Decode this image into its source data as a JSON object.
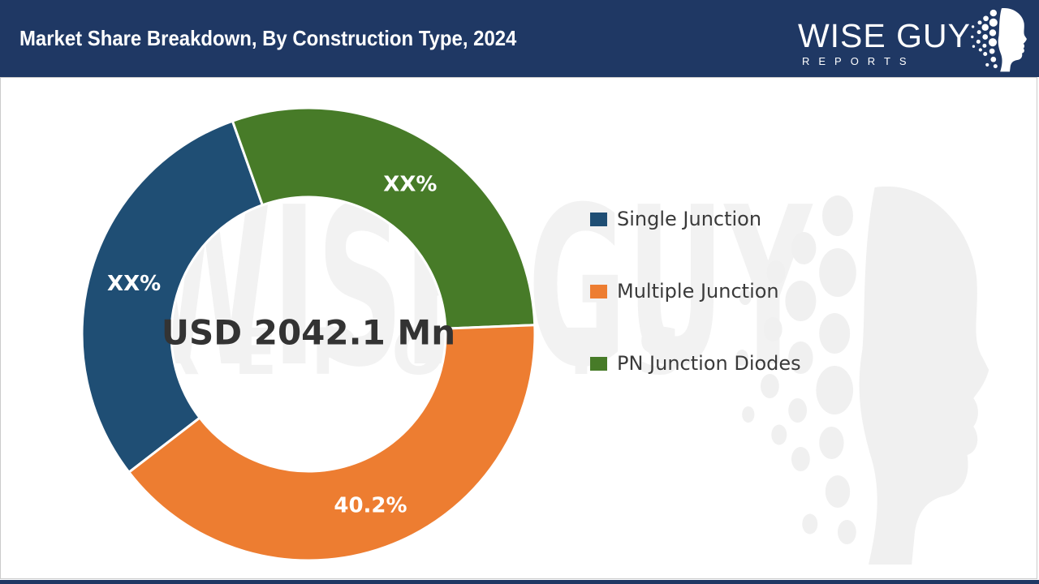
{
  "header": {
    "title": "Market Share Breakdown, By Construction Type, 2024",
    "background_color": "#1f3864",
    "logo": {
      "line1": "WISE GUY",
      "line2": "REPORTS"
    }
  },
  "watermark": {
    "line1": "WISE GUY",
    "line2": "REPORTS"
  },
  "chart_data": {
    "type": "donut",
    "title": "Market Share Breakdown, By Construction Type, 2024",
    "center_label": "USD 2042.1 Mn",
    "start_angle_deg": 232.4,
    "legend_position": "right",
    "grid": false,
    "segments": [
      {
        "name": "Single Junction",
        "value_pct": 30.0,
        "display_label": "XX%",
        "color": "#1f4e74"
      },
      {
        "name": "PN Junction Diodes",
        "value_pct": 29.8,
        "display_label": "XX%",
        "color": "#477b28"
      },
      {
        "name": "Multiple Junction",
        "value_pct": 40.2,
        "display_label": "40.2%",
        "color": "#ed7d31"
      }
    ]
  },
  "legend": {
    "items": [
      {
        "label": "Single Junction",
        "color": "#1f4e74"
      },
      {
        "label": "Multiple Junction",
        "color": "#ed7d31"
      },
      {
        "label": "PN Junction Diodes",
        "color": "#477b28"
      }
    ]
  }
}
